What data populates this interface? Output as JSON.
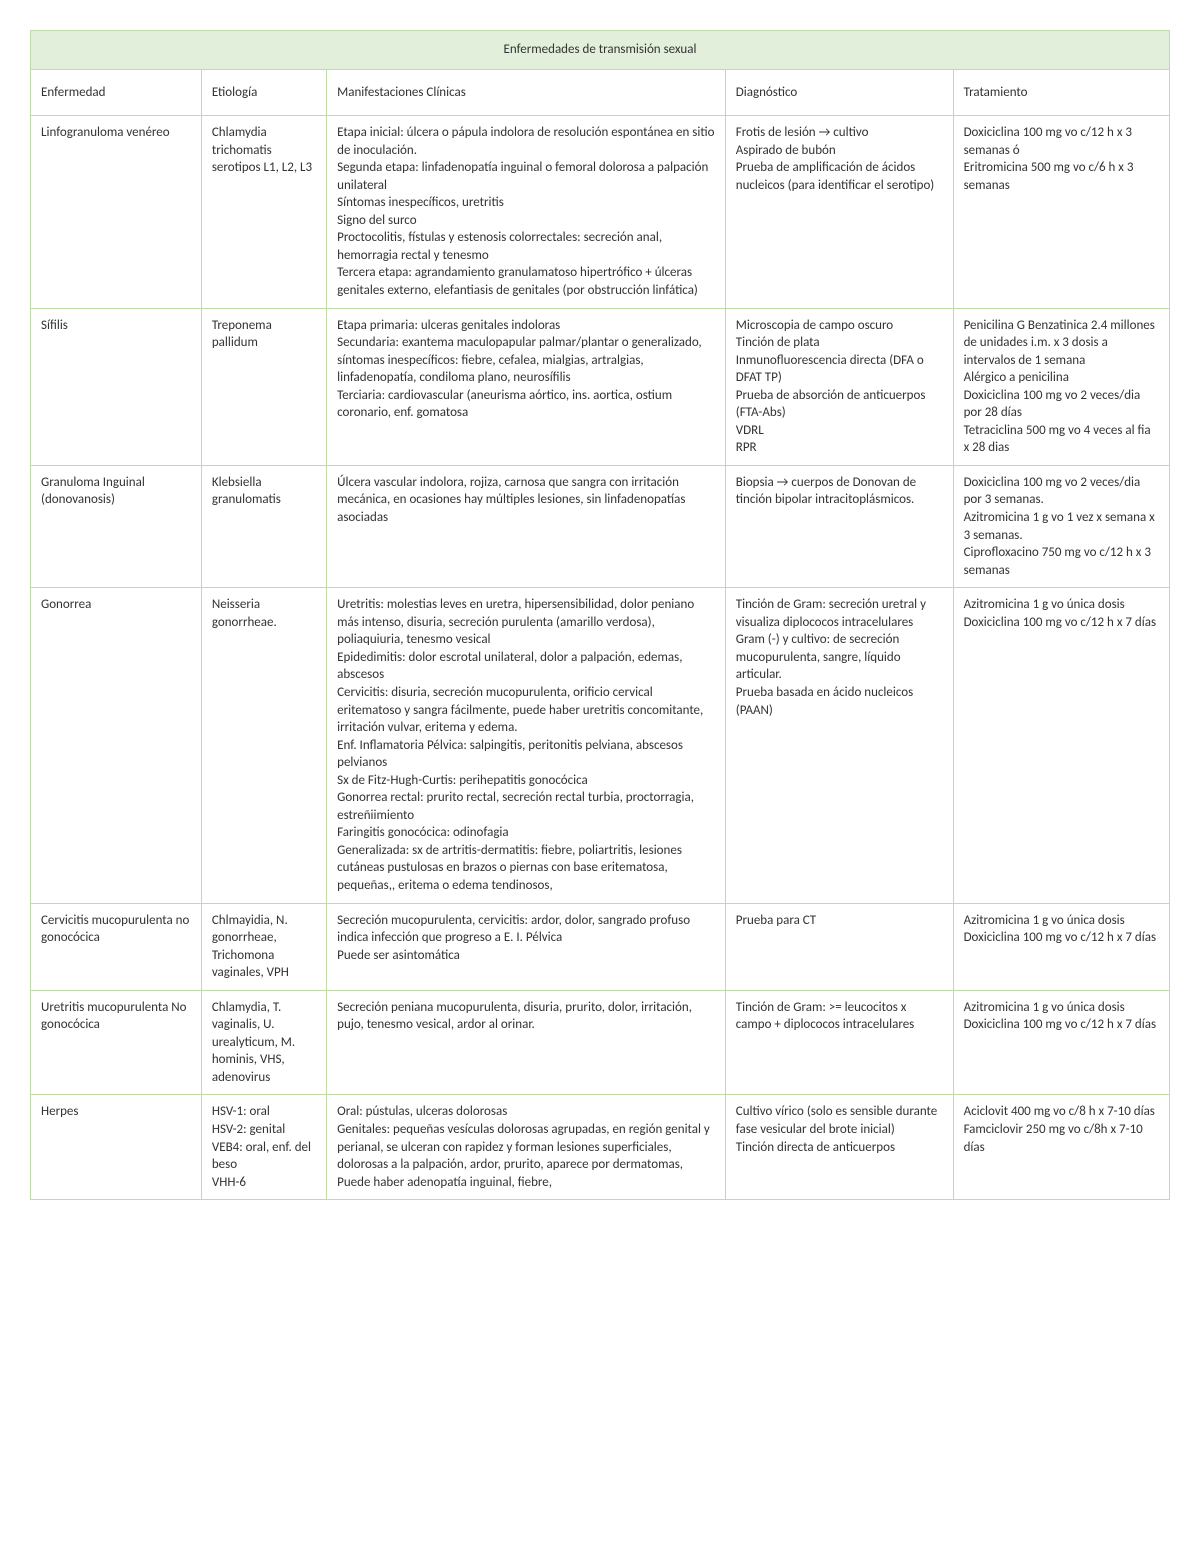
{
  "table": {
    "title": "Enfermedades de transmisión sexual",
    "columns": [
      "Enfermedad",
      "Etiología",
      "Manifestaciones Clínicas",
      "Diagnóstico",
      "Tratamiento"
    ],
    "col_widths_pct": [
      15,
      11,
      35,
      20,
      19
    ],
    "border_color": "#bfdca6",
    "title_bg": "#e2efda",
    "text_color": "#333333",
    "font_family": "Calibri",
    "font_size_pt": 10,
    "rows": [
      {
        "enfermedad": "Linfogranuloma venéreo",
        "etiologia": "Chlamydia trichomatis serotipos L1, L2, L3",
        "manifestaciones": "Etapa inicial: úlcera o pápula indolora de resolución espontánea en sitio de inoculación.\nSegunda etapa: linfadenopatía inguinal o femoral dolorosa a palpación unilateral\nSíntomas inespecíficos, uretritis\nSigno del surco\nProctocolitis, fístulas y estenosis colorrectales: secreción anal, hemorragia rectal y tenesmo\nTercera etapa: agrandamiento granulamatoso hipertrófico + úlceras genitales externo, elefantiasis de genitales (por obstrucción linfática)",
        "diagnostico": "Frotis de lesión → cultivo\nAspirado de bubón\nPrueba de amplificación de ácidos nucleicos (para identificar el serotipo)",
        "tratamiento": "Doxiciclina 100 mg vo c/12 h x 3 semanas ó\nEritromicina 500 mg vo c/6 h x 3 semanas"
      },
      {
        "enfermedad": "Sífilis",
        "etiologia": "Treponema pallidum",
        "manifestaciones": "Etapa primaria: ulceras genitales indoloras\nSecundaria: exantema maculopapular palmar/plantar o generalizado, síntomas inespecíficos: fiebre, cefalea, mialgias, artralgias, linfadenopatía, condiloma plano, neurosífilis\nTerciaria: cardiovascular (aneurisma aórtico, ins. aortica, ostium coronario, enf. gomatosa",
        "diagnostico": "Microscopia de campo oscuro\nTinción de plata\nInmunofluorescencia directa (DFA o DFAT TP)\nPrueba de absorción de anticuerpos (FTA-Abs)\nVDRL\nRPR",
        "tratamiento": "Penicilina G Benzatinica 2.4 millones de unidades i.m. x 3 dosis a intervalos de 1 semana\nAlérgico a penicilina\nDoxiciclina 100 mg vo 2 veces/dia por 28 días\nTetraciclina 500 mg vo 4 veces al fia x 28 dias"
      },
      {
        "enfermedad": "Granuloma Inguinal (donovanosis)",
        "etiologia": "Klebsiella granulomatis",
        "manifestaciones": "Úlcera vascular indolora, rojiza, carnosa que sangra con irritación mecánica, en ocasiones hay múltiples lesiones, sin linfadenopatías asociadas",
        "diagnostico": "Biopsia → cuerpos de Donovan de tinción bipolar intracitoplásmicos.",
        "tratamiento": "Doxiciclina 100 mg vo 2 veces/dia por 3 semanas.\nAzitromicina 1 g vo 1 vez x semana x 3 semanas.\nCiprofloxacino 750 mg vo c/12 h x 3 semanas"
      },
      {
        "enfermedad": "Gonorrea",
        "etiologia": "Neisseria gonorrheae.",
        "manifestaciones": "Uretritis: molestias leves en uretra, hipersensibilidad, dolor peniano más intenso, disuria, secreción purulenta (amarillo verdosa), poliaquiuria, tenesmo vesical\nEpidedimitis: dolor escrotal unilateral, dolor a palpación, edemas, abscesos\nCervicitis: disuria, secreción mucopurulenta, orificio cervical eritematoso y sangra fácilmente, puede haber uretritis concomitante, irritación vulvar, eritema y edema.\nEnf. Inflamatoria Pélvica: salpingitis, peritonitis pelviana, abscesos pelvianos\nSx de Fitz-Hugh-Curtis: perihepatitis gonocócica\nGonorrea rectal: prurito rectal, secreción rectal turbia, proctorragia, estreñiimiento\nFaringitis gonocócica: odinofagia\nGeneralizada: sx de artritis-dermatitis: fiebre, poliartritis, lesiones cutáneas pustulosas en brazos o piernas con base eritematosa, pequeñas,, eritema o edema tendinosos,",
        "diagnostico": "Tinción de Gram: secreción uretral y visualiza diplococos intracelulares Gram (-) y cultivo: de secreción mucopurulenta, sangre, líquido articular.\nPrueba basada en ácido nucleicos (PAAN)",
        "tratamiento": "Azitromicina 1 g vo única dosis\nDoxiciclina 100 mg vo c/12 h x 7 días"
      },
      {
        "enfermedad": "Cervicitis mucopurulenta no gonocócica",
        "etiologia": "Chlmayidia, N. gonorrheae, Trichomona vaginales, VPH",
        "manifestaciones": "Secreción mucopurulenta, cervicitis: ardor, dolor, sangrado profuso indica infección que progreso a E. I. Pélvica\nPuede ser asintomática",
        "diagnostico": "Prueba para CT",
        "tratamiento": "Azitromicina 1 g vo única dosis\nDoxiciclina 100 mg vo c/12 h x 7 días"
      },
      {
        "enfermedad": "Uretritis mucopurulenta No gonocócica",
        "etiologia": "Chlamydia, T. vaginalis, U. urealyticum, M. hominis, VHS, adenovirus",
        "manifestaciones": "Secreción peniana mucopurulenta, disuria, prurito, dolor, irritación, pujo, tenesmo vesical, ardor al orinar.",
        "diagnostico": "Tinción de Gram: >= leucocitos x campo + diplococos intracelulares",
        "tratamiento": "Azitromicina 1 g vo única dosis\nDoxiciclina 100 mg vo c/12 h x 7 días"
      },
      {
        "enfermedad": "Herpes",
        "etiologia": "HSV-1: oral\nHSV-2: genital\nVEB4: oral, enf. del beso\nVHH-6",
        "manifestaciones": "Oral: pústulas, ulceras dolorosas\nGenitales: pequeñas vesículas dolorosas agrupadas, en región genital y perianal, se ulceran con rapidez y forman lesiones superficiales, dolorosas a la palpación, ardor, prurito, aparece por dermatomas, Puede haber adenopatía inguinal, fiebre,",
        "diagnostico": "Cultivo vírico (solo es sensible durante fase vesicular del brote inicial)\nTinción directa de anticuerpos",
        "tratamiento": "Aciclovit 400 mg vo c/8 h x 7-10 días\nFamciclovir 250 mg vo c/8h x 7-10 días"
      }
    ]
  }
}
